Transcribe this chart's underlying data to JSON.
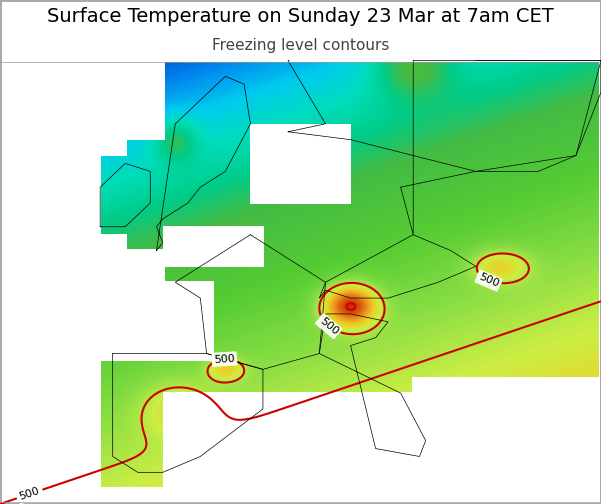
{
  "title": "Surface Temperature on Sunday 23 Mar at 7am CET",
  "subtitle": "Freezing level contours",
  "title_fontsize": 14,
  "subtitle_fontsize": 11,
  "fig_width": 6.01,
  "fig_height": 5.04,
  "dpi": 100,
  "bg_color": "#c8d4e8",
  "header_bg": "#f0f0f0",
  "map_extent": [
    -18,
    30,
    34,
    62
  ],
  "contour_color": "#cc0000",
  "contour_linewidth": 1.5,
  "contour_label_fontsize": 8,
  "border_color": "#000000",
  "border_linewidth": 0.5
}
